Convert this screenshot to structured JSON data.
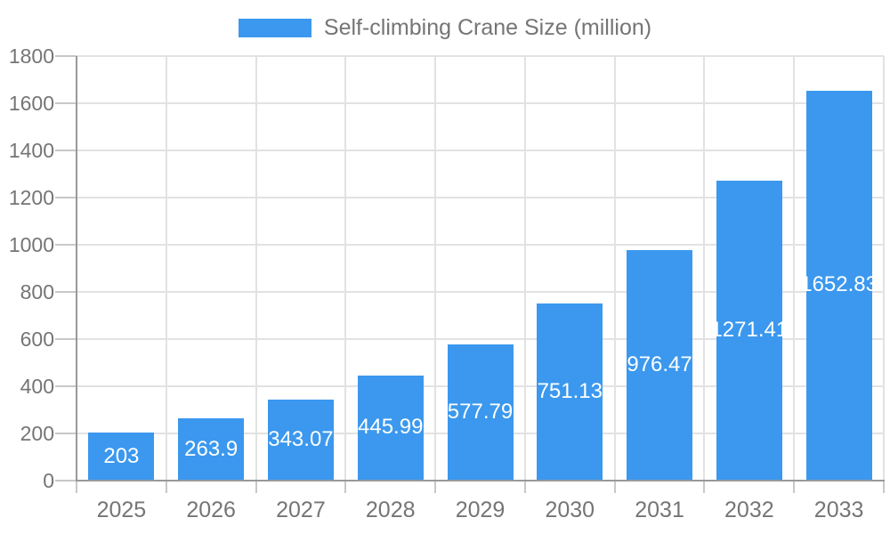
{
  "legend": {
    "label": "Self-climbing Crane Size (million)"
  },
  "colors": {
    "bar": "#3B98EE",
    "bar_label_text": "#FFFFFF",
    "axis_text": "#757575",
    "legend_text": "#757575",
    "gridline": "#E2E2E2",
    "axis_line": "#999999",
    "tick": "#C8C8C8",
    "background": "#FFFFFF"
  },
  "chart_data": {
    "type": "bar",
    "title": "Self-climbing Crane Size (million)",
    "xlabel": "",
    "ylabel": "",
    "categories": [
      "2025",
      "2026",
      "2027",
      "2028",
      "2029",
      "2030",
      "2031",
      "2032",
      "2033"
    ],
    "series": [
      {
        "name": "Self-climbing Crane Size (million)",
        "values": [
          203,
          263.9,
          343.07,
          445.99,
          577.79,
          751.13,
          976.47,
          1271.41,
          1652.83
        ]
      }
    ],
    "ylim": [
      0,
      1800
    ],
    "yticks": [
      0,
      200,
      400,
      600,
      800,
      1000,
      1200,
      1400,
      1600,
      1800
    ],
    "grid": true,
    "legend_position": "top",
    "value_labels": "inside-center-white"
  }
}
